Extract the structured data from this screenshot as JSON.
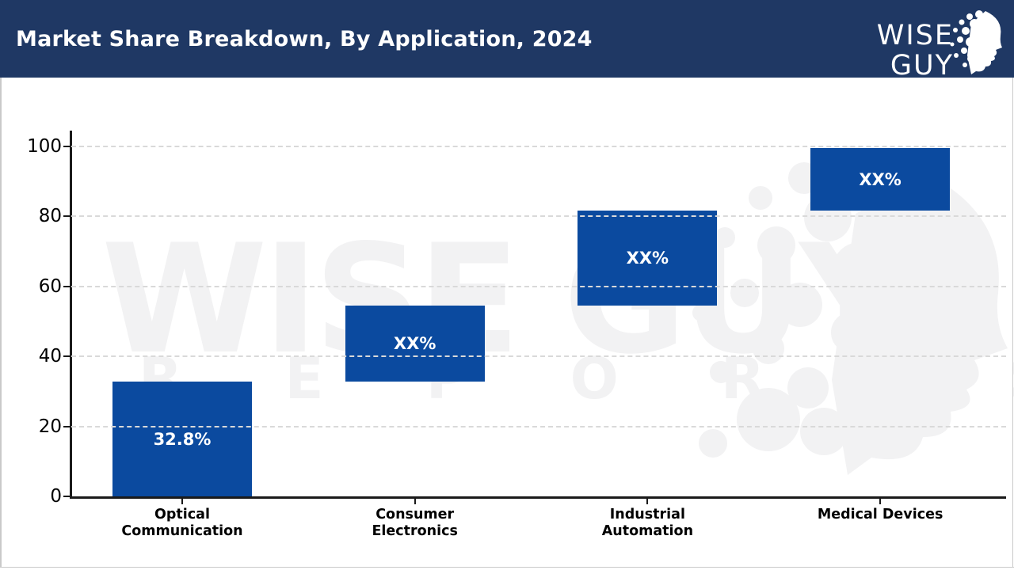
{
  "header": {
    "title": "Market Share Breakdown, By Application, 2024",
    "bg_color": "#1f3864",
    "logo": {
      "line1": "WISE GUY",
      "line2": "R E P O R T S"
    }
  },
  "watermark": {
    "line1": "WISE GUY",
    "line2": "R E P O R T S"
  },
  "chart_data": {
    "type": "bar",
    "subtype": "waterfall",
    "title": "Market Share Breakdown, By Application, 2024",
    "xlabel": "",
    "ylabel": "",
    "ylim": [
      0,
      100
    ],
    "yticks": [
      0,
      20,
      40,
      60,
      80,
      100
    ],
    "grid": "horizontal-dashed",
    "legend": "none",
    "bar_color": "#0b4a9f",
    "label_color": "#ffffff",
    "categories": [
      "Optical Communication",
      "Consumer Electronics",
      "Industrial Automation",
      "Medical Devices"
    ],
    "series": [
      {
        "name": "Market Share",
        "segments": [
          {
            "category": "Optical Communication",
            "start": 0,
            "end": 32.8,
            "label": "32.8%"
          },
          {
            "category": "Consumer Electronics",
            "start": 32.8,
            "end": 54.5,
            "label": "XX%"
          },
          {
            "category": "Industrial Automation",
            "start": 54.5,
            "end": 81.7,
            "label": "XX%"
          },
          {
            "category": "Medical Devices",
            "start": 81.7,
            "end": 99.5,
            "label": "XX%"
          }
        ]
      }
    ]
  }
}
